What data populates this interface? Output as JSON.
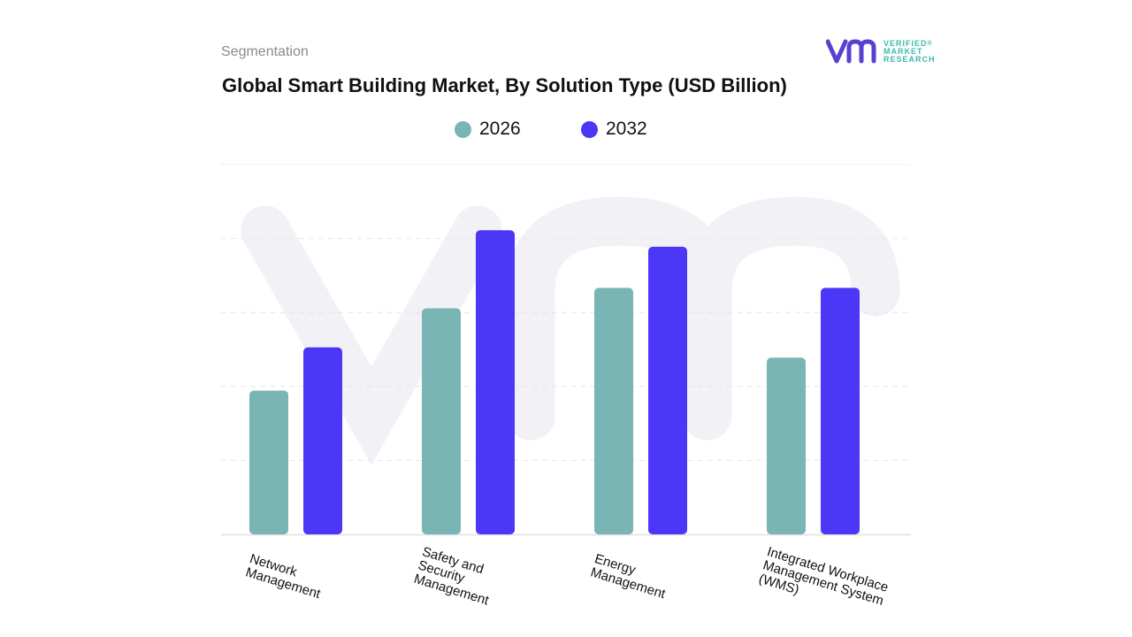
{
  "header": {
    "segment_label": "Segmentation",
    "title": "Global Smart Building Market, By Solution Type (USD Billion)"
  },
  "logo": {
    "mark": "vmr",
    "lines": [
      "VERIFIED",
      "MARKET",
      "RESEARCH"
    ],
    "registered": "®"
  },
  "colors": {
    "series_2026": "#7ab5b6",
    "series_2032": "#4b37f5",
    "logo_purple": "#5a3fd1",
    "logo_teal": "#3dbab0"
  },
  "chart_data": {
    "type": "bar",
    "title": "Global Smart Building Market, By Solution Type (USD Billion)",
    "xlabel": "",
    "ylabel": "",
    "categories": [
      "Network\nManagement",
      "Safety and\nSecurity\nManagement",
      "Energy\nManagement",
      "Integrated Workplace\nManagement System\n(WMS)"
    ],
    "series": [
      {
        "name": "2026",
        "values": [
          35,
          55,
          60,
          43
        ]
      },
      {
        "name": "2032",
        "values": [
          45.5,
          74,
          70,
          60
        ]
      }
    ],
    "ylim": [
      0,
      90
    ],
    "grid": true,
    "legend": "top-center"
  }
}
